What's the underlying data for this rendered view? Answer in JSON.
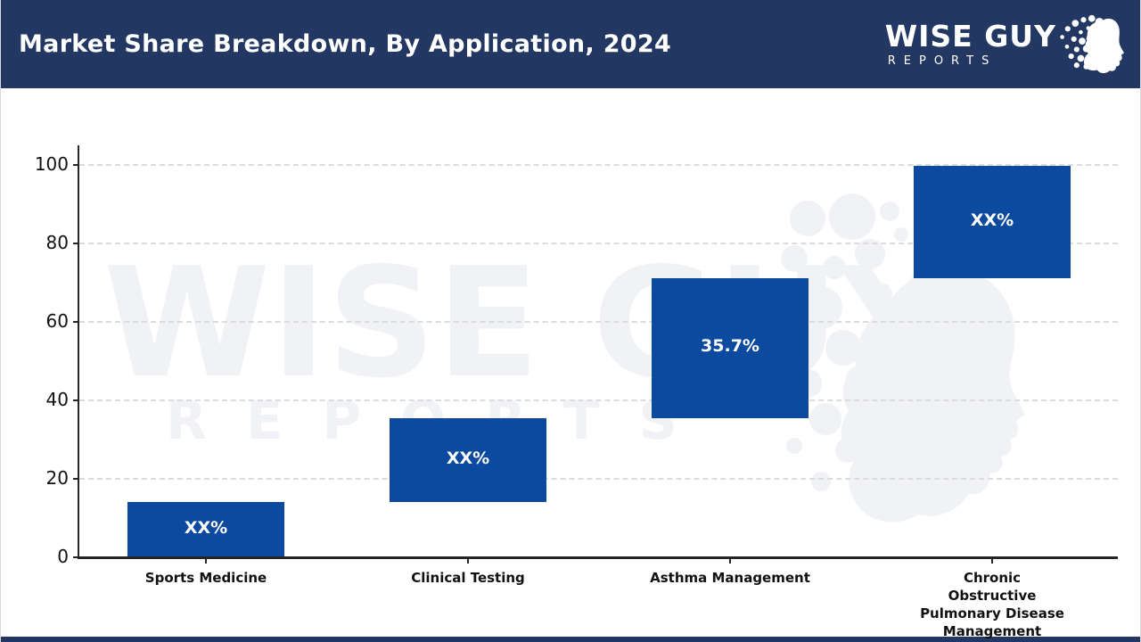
{
  "header": {
    "title": "Market Share Breakdown, By Application, 2024",
    "logo": {
      "name": "WISE GUY",
      "tagline": "REPORTS"
    }
  },
  "watermark": {
    "name": "WISE GUY",
    "tagline": "REPORTS"
  },
  "colors": {
    "header_bg": "#223761",
    "bar": "#0b4a9f",
    "axis": "#262626",
    "grid": "#dcdcdc",
    "watermark": "#f1f2f5",
    "bar_label": "#ffffff",
    "tick_label": "#111111"
  },
  "chart_data": {
    "type": "bar",
    "subtype": "waterfall",
    "title": "Market Share Breakdown, By Application, 2024",
    "categories": [
      "Sports Medicine",
      "Clinical Testing",
      "Asthma Management",
      "Chronic Obstructive Pulmonary Disease Management"
    ],
    "category_label_lines": [
      [
        "Sports Medicine"
      ],
      [
        "Clinical Testing"
      ],
      [
        "Asthma Management"
      ],
      [
        "Chronic",
        "Obstructive",
        "Pulmonary Disease",
        "Management"
      ]
    ],
    "segments": [
      {
        "category": "Sports Medicine",
        "start": 0,
        "end": 14.1,
        "value": 14.1,
        "label": "XX%"
      },
      {
        "category": "Clinical Testing",
        "start": 14.1,
        "end": 35.5,
        "value": 21.4,
        "label": "XX%"
      },
      {
        "category": "Asthma Management",
        "start": 35.5,
        "end": 71.2,
        "value": 35.7,
        "label": "35.7%"
      },
      {
        "category": "Chronic Obstructive Pulmonary Disease Management",
        "start": 71.2,
        "end": 99.8,
        "value": 28.6,
        "label": "XX%"
      }
    ],
    "yticks": [
      0,
      20,
      40,
      60,
      80,
      100
    ],
    "ylim": [
      0,
      105
    ],
    "xlabel": "",
    "ylabel": "",
    "grid": "dashed-horizontal",
    "legend": false
  }
}
